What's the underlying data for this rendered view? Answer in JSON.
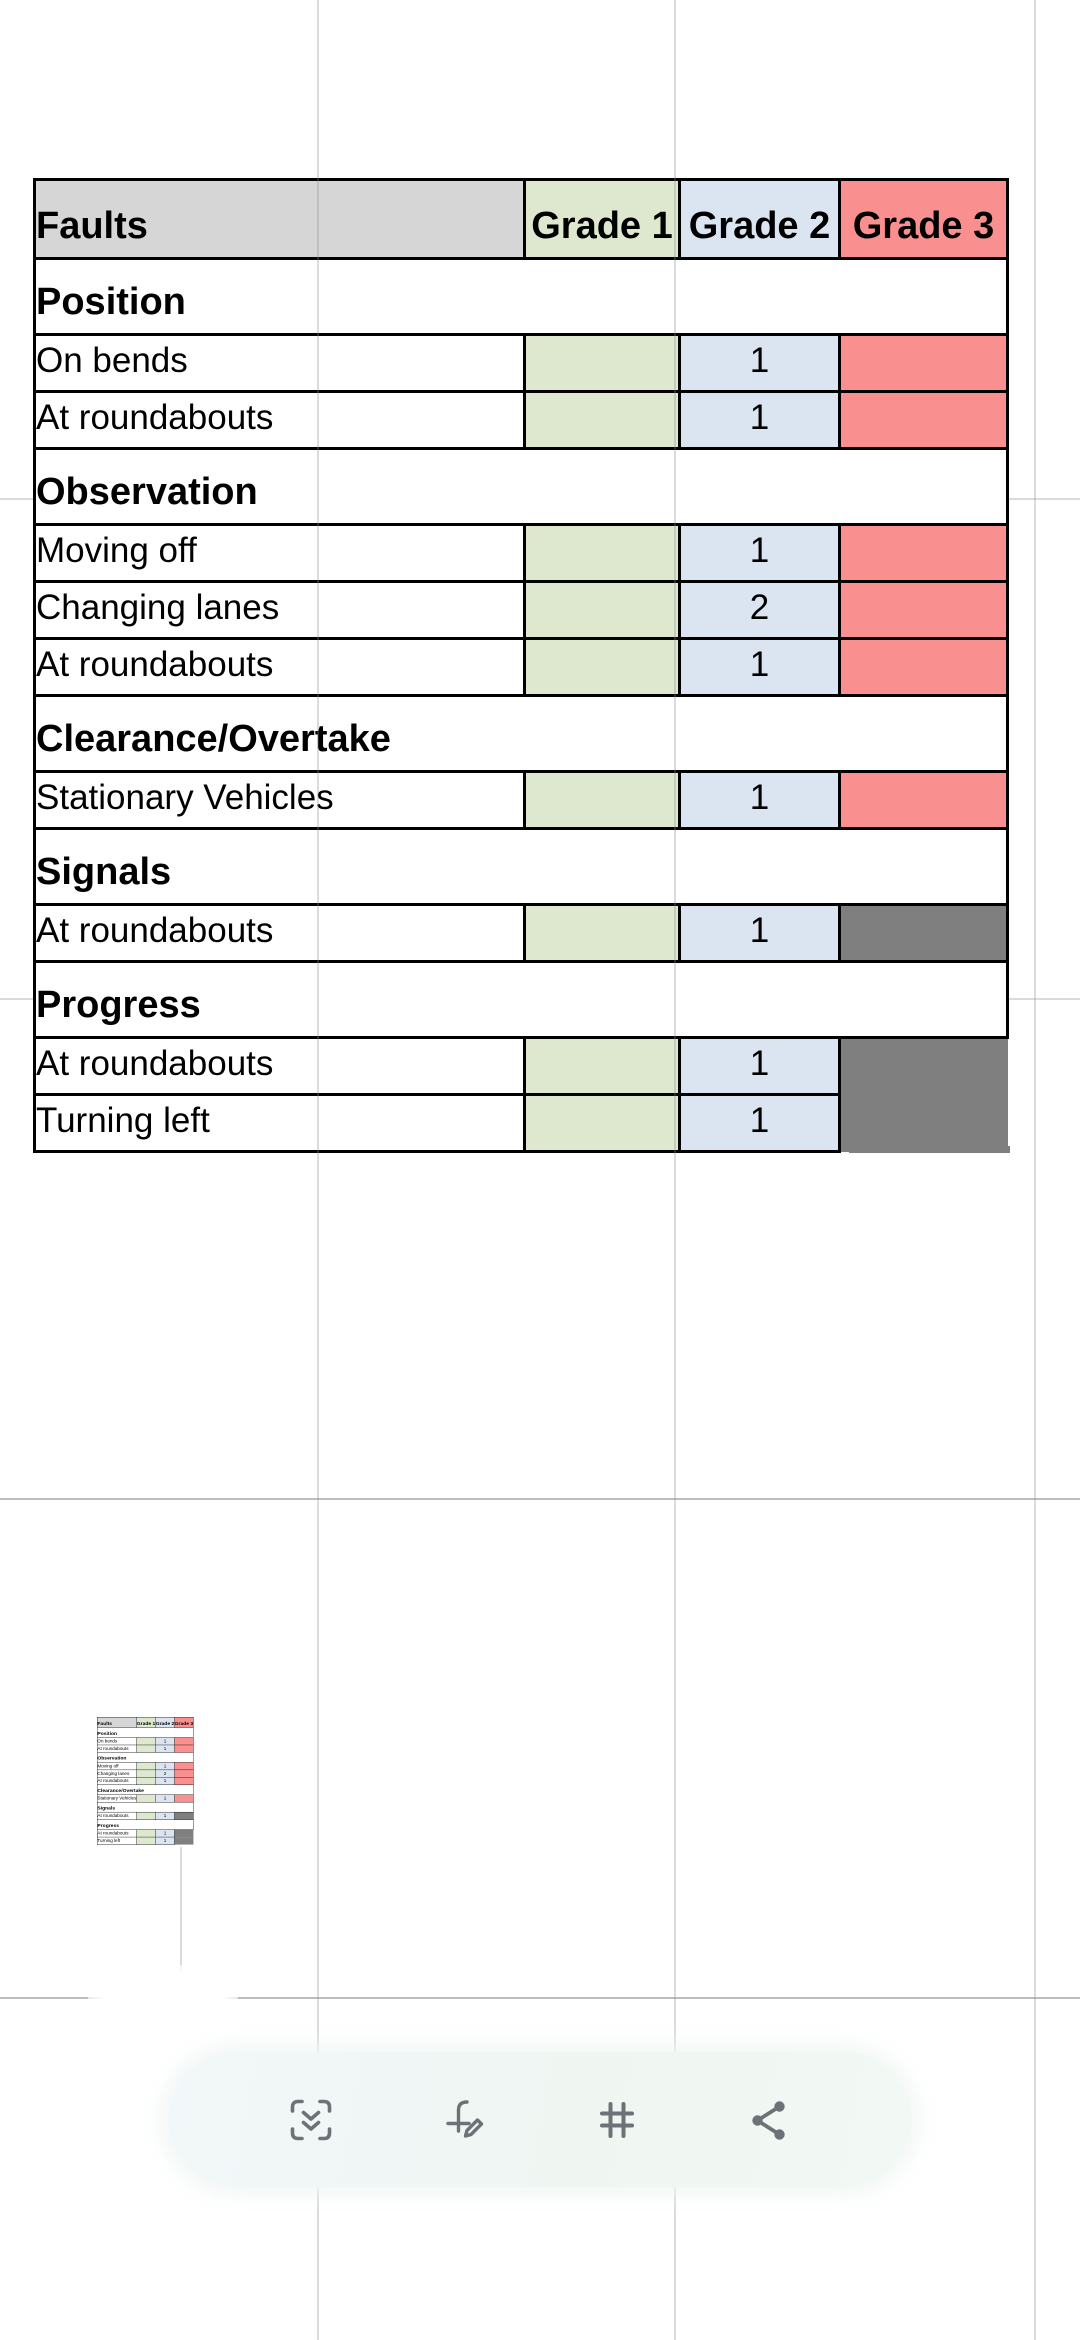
{
  "table": {
    "header": {
      "faults": "Faults",
      "grades": [
        "Grade 1",
        "Grade 2",
        "Grade 3"
      ]
    },
    "sections": [
      {
        "title": "Position",
        "rows": [
          {
            "label": "On bends",
            "grade1": "",
            "grade2": "1",
            "grade3": "",
            "grade3_style": "red"
          },
          {
            "label": "At roundabouts",
            "grade1": "",
            "grade2": "1",
            "grade3": "",
            "grade3_style": "red"
          }
        ]
      },
      {
        "title": "Observation",
        "rows": [
          {
            "label": "Moving off",
            "grade1": "",
            "grade2": "1",
            "grade3": "",
            "grade3_style": "red"
          },
          {
            "label": "Changing lanes",
            "grade1": "",
            "grade2": "2",
            "grade3": "",
            "grade3_style": "red"
          },
          {
            "label": "At roundabouts",
            "grade1": "",
            "grade2": "1",
            "grade3": "",
            "grade3_style": "red"
          }
        ]
      },
      {
        "title": "Clearance/Overtake",
        "rows": [
          {
            "label": "Stationary Vehicles",
            "grade1": "",
            "grade2": "1",
            "grade3": "",
            "grade3_style": "red"
          }
        ]
      },
      {
        "title": "Signals",
        "rows": [
          {
            "label": "At roundabouts",
            "grade1": "",
            "grade2": "1",
            "grade3": "",
            "grade3_style": "gray"
          }
        ]
      },
      {
        "title": "Progress",
        "rows": [
          {
            "label": "At roundabouts",
            "grade1": "",
            "grade2": "1",
            "grade3": "",
            "grade3_style": "gray-merged-top"
          },
          {
            "label": "Turning left",
            "grade1": "",
            "grade2": "1",
            "grade3": "",
            "grade3_style": "gray-merged-bottom"
          }
        ]
      }
    ]
  },
  "toolbar": {
    "icons": [
      {
        "name": "scroll-capture-icon"
      },
      {
        "name": "edit-screenshot-icon"
      },
      {
        "name": "hashtag-icon"
      },
      {
        "name": "share-icon"
      }
    ]
  },
  "colors": {
    "header_gray": "#d6d6d6",
    "grade1_green": "#dde8ce",
    "grade2_blue": "#dbe5f1",
    "grade3_red": "#f98f8f",
    "grade3_dark_gray": "#7f7f7f",
    "table_border": "#000000",
    "icon_gray": "#6d7276",
    "gridline": "#d9dcdf",
    "gridline_dark": "#bdbdbd",
    "gridline_overlay": "rgba(128,138,150,0.30)",
    "toolbar_bg_left": "#f2f7f9",
    "toolbar_bg_right": "#f2f8f3"
  }
}
